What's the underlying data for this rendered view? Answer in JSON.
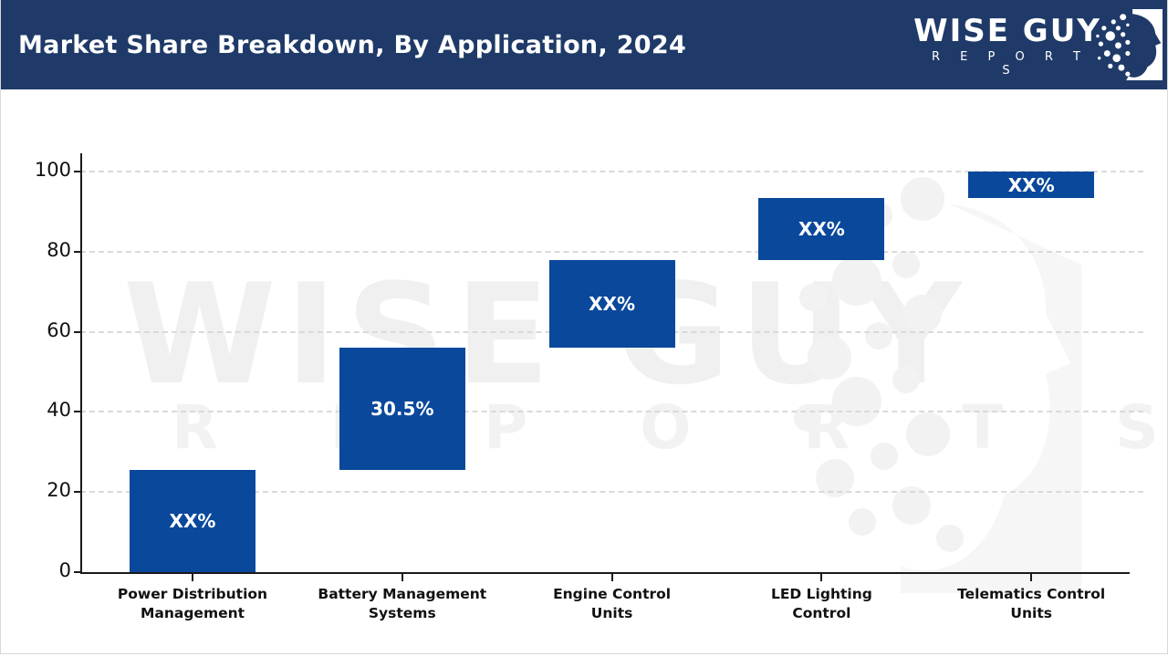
{
  "header": {
    "title": "Market Share Breakdown, By Application, 2024",
    "background": "#1f3a68",
    "logo": {
      "line1": "WISE GUY",
      "line2": "R E P O R T S"
    }
  },
  "watermark": {
    "line1": "WISE GUY",
    "line2": "R E P O R T S"
  },
  "chart_data": {
    "type": "bar",
    "subtype": "waterfall",
    "title": "Market Share Breakdown, By Application, 2024",
    "categories": [
      "Power Distribution\nManagement",
      "Battery Management\nSystems",
      "Engine Control\nUnits",
      "LED Lighting\nControl",
      "Telematics Control\nUnits"
    ],
    "series": [
      {
        "name": "Market Share (%)",
        "segments": [
          {
            "label": "XX%",
            "start": 0,
            "end": 25.5
          },
          {
            "label": "30.5%",
            "start": 25.5,
            "end": 56
          },
          {
            "label": "XX%",
            "start": 56,
            "end": 78
          },
          {
            "label": "XX%",
            "start": 78,
            "end": 93.3
          },
          {
            "label": "XX%",
            "start": 93.3,
            "end": 100
          }
        ]
      }
    ],
    "bar_color": "#0a489c",
    "ylim": [
      0,
      100
    ],
    "yticks": [
      0,
      20,
      40,
      60,
      80,
      100
    ],
    "grid": "horizontal-dashed",
    "legend": "none",
    "xlabel": "",
    "ylabel": ""
  }
}
